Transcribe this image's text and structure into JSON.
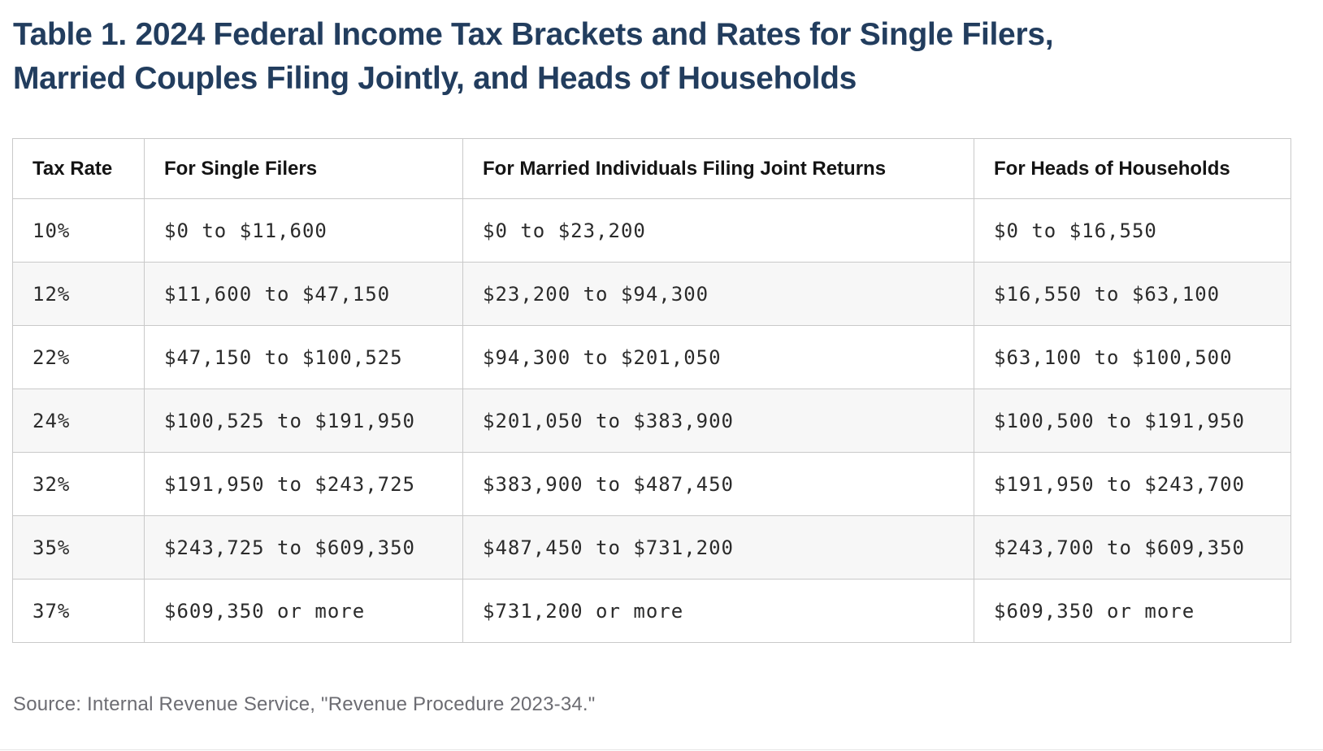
{
  "title": {
    "lines": [
      "Table 1. 2024 Federal Income Tax Brackets and Rates for Single Filers,",
      "Married Couples Filing Jointly, and Heads of Households"
    ]
  },
  "chart_data": {
    "type": "table",
    "title": "Table 1. 2024 Federal Income Tax Brackets and Rates for Single Filers, Married Couples Filing Jointly, and Heads of Households",
    "columns": [
      "Tax Rate",
      "For Single Filers",
      "For Married Individuals Filing Joint Returns",
      "For Heads of Households"
    ],
    "rows": [
      [
        "10%",
        "$0 to $11,600",
        "$0 to $23,200",
        "$0 to $16,550"
      ],
      [
        "12%",
        "$11,600 to $47,150",
        "$23,200 to $94,300",
        "$16,550 to $63,100"
      ],
      [
        "22%",
        "$47,150 to $100,525",
        "$94,300 to $201,050",
        "$63,100 to $100,500"
      ],
      [
        "24%",
        "$100,525 to $191,950",
        "$201,050 to $383,900",
        "$100,500 to $191,950"
      ],
      [
        "32%",
        "$191,950 to $243,725",
        "$383,900 to $487,450",
        "$191,950 to $243,700"
      ],
      [
        "35%",
        "$243,725 to $609,350",
        "$487,450 to $731,200",
        "$243,700 to $609,350"
      ],
      [
        "37%",
        "$609,350 or more",
        "$731,200 or more",
        "$609,350 or more"
      ]
    ],
    "source": "Source: Internal Revenue Service, \"Revenue Procedure 2023-34.\""
  },
  "colors": {
    "title_text": "#223d5e",
    "header_text": "#141414",
    "cell_text": "#2b2b2b",
    "border": "#c9c9c9",
    "row_alt_bg": "#f7f7f7",
    "source_text": "#6c6c72",
    "background": "#ffffff"
  }
}
